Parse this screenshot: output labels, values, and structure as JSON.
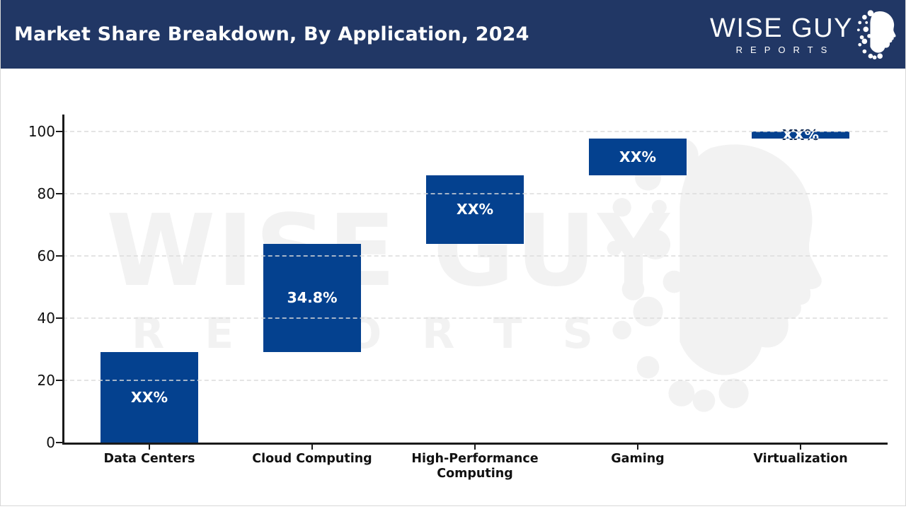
{
  "header": {
    "title": "Market Share Breakdown, By Application, 2024",
    "logo": {
      "line1": "WISE GUY",
      "line2": "REPORTS"
    }
  },
  "watermark": {
    "line1": "WISE GUY",
    "line2": "REPORTS"
  },
  "colors": {
    "header_bg": "#213765",
    "bar": "#04418f",
    "label_inside": "#ffffff",
    "label_outside": "#112a52",
    "grid": "#dcdcdc",
    "axis": "#1a1a1a",
    "watermark": "#f2f2f2"
  },
  "chart_data": {
    "type": "bar",
    "subtype": "waterfall",
    "title": "Market Share Breakdown, By Application, 2024",
    "categories": [
      "Data Centers",
      "Cloud Computing",
      "High-Performance\nComputing",
      "Gaming",
      "Virtualization"
    ],
    "segments": [
      {
        "category": "Data Centers",
        "start": 0,
        "end": 29.1,
        "value": 29.1,
        "label": "XX%"
      },
      {
        "category": "Cloud Computing",
        "start": 29.1,
        "end": 63.9,
        "value": 34.8,
        "label": "34.8%"
      },
      {
        "category": "High-Performance Computing",
        "start": 63.9,
        "end": 86.0,
        "value": 22.1,
        "label": "XX%"
      },
      {
        "category": "Gaming",
        "start": 86.0,
        "end": 97.7,
        "value": 11.7,
        "label": "XX%"
      },
      {
        "category": "Virtualization",
        "start": 97.7,
        "end": 100.0,
        "value": 2.3,
        "label": "XX%"
      }
    ],
    "ylim": [
      0,
      100
    ],
    "yticks": [
      0,
      20,
      40,
      60,
      80,
      100
    ],
    "grid": "dashed-horizontal",
    "legend": "none"
  }
}
